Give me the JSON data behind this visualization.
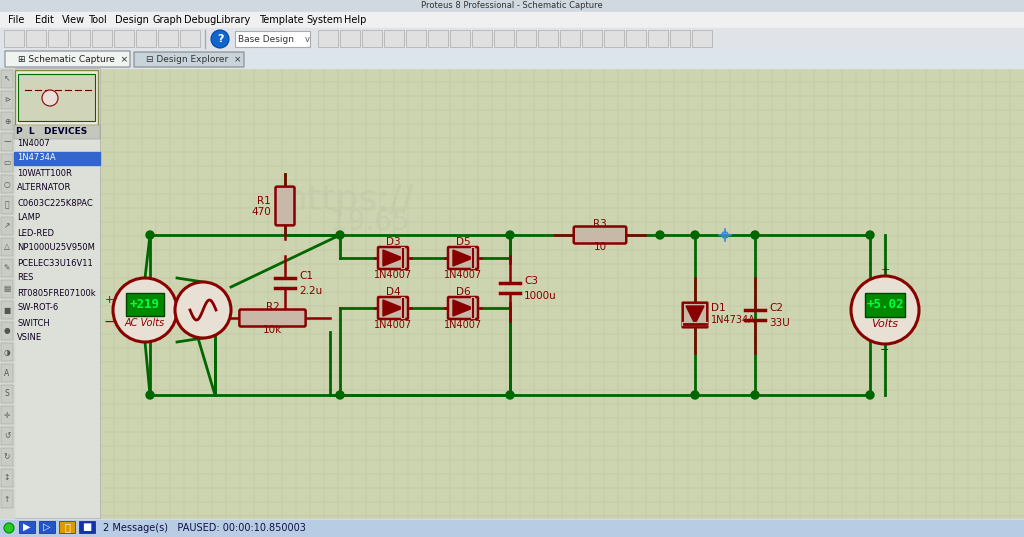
{
  "wire_color": "#006600",
  "component_color": "#880000",
  "component_fill": "#c8b8a8",
  "menu_items": [
    "File",
    "Edit",
    "View",
    "Tool",
    "Design",
    "Graph",
    "Debug",
    "Library",
    "Template",
    "System",
    "Help"
  ],
  "devices": [
    "1N4007",
    "1N4734A",
    "10WATT100R",
    "ALTERNATOR",
    "C0603C225K8PAC",
    "LAMP",
    "LED-RED",
    "NP1000U25V950M",
    "PCELEC33U16V11",
    "RES",
    "RT0805FRE07100k",
    "SW-ROT-6",
    "SWITCH",
    "VSINE"
  ],
  "selected_device_idx": 1,
  "voltmeter1_value": "+219",
  "voltmeter1_label": "AC Volts",
  "voltmeter2_value": "+5.02",
  "voltmeter2_label": "Volts",
  "status_text": "2 Message(s)   PAUSED: 00:00:10.850003",
  "schematic_bg": "#cdd4b0",
  "grid_color": "#bcc0a0",
  "ui_bg": "#dce4ec",
  "menu_bg": "#f0f0f0",
  "toolbar_bg": "#e0e4e8",
  "sidebar_bg": "#dce0d8",
  "tab_active": "#f0f4f0",
  "tab_inactive": "#c8d4dc",
  "status_bg": "#b8cce4",
  "selected_device_color": "#3366cc",
  "watermark_color": "#c0c8a8",
  "probe_color": "#4488cc"
}
